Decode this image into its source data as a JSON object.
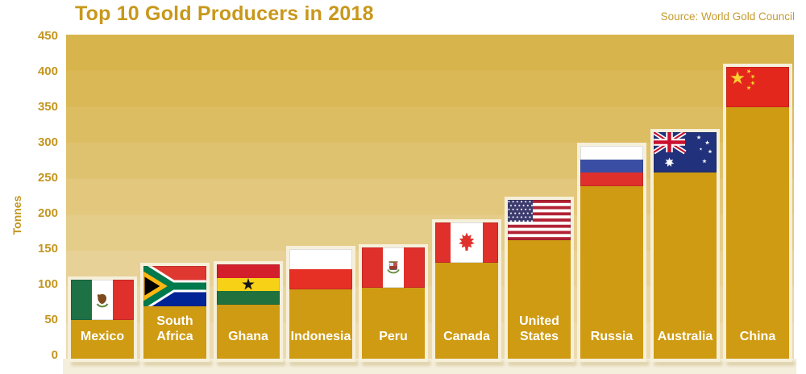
{
  "title": "Top 10 Gold Producers in 2018",
  "source": "Source: World Gold Council",
  "y_axis": {
    "label": "Tonnes",
    "ticks": [
      450,
      400,
      350,
      300,
      250,
      200,
      150,
      100,
      50,
      0
    ]
  },
  "colors": {
    "title_text": "#C8981B",
    "axis_text": "#C3961F",
    "bar_fill": "#CE9B13",
    "bar_halo": "#F6EFDA",
    "band_top": "#D8B44C",
    "band_bottom": "#ECDBB0",
    "footer_strip": "#F4EEDC",
    "bar_label_text": "#FFFFFF"
  },
  "chart_data": {
    "type": "bar",
    "title": "Top 10 Gold Producers in 2018",
    "source": "World Gold Council",
    "xlabel": "",
    "ylabel": "Tonnes",
    "ylim": [
      0,
      450
    ],
    "ytick_step": 50,
    "units": "tonnes",
    "legend": "none",
    "grid": "horizontal 50-tonne color bands",
    "categories": [
      "Mexico",
      "South Africa",
      "Ghana",
      "Indonesia",
      "Peru",
      "Canada",
      "United States",
      "Russia",
      "Australia",
      "China"
    ],
    "values": [
      110,
      129,
      131,
      152,
      155,
      189,
      220,
      295,
      315,
      405
    ],
    "bars": [
      {
        "label": "Mexico",
        "value": 110,
        "flag": "mexico",
        "icon": "mexico-flag-icon"
      },
      {
        "label": "South Africa",
        "value": 129,
        "flag": "south-africa",
        "icon": "south-africa-flag-icon"
      },
      {
        "label": "Ghana",
        "value": 131,
        "flag": "ghana",
        "icon": "ghana-flag-icon"
      },
      {
        "label": "Indonesia",
        "value": 152,
        "flag": "indonesia",
        "icon": "indonesia-flag-icon"
      },
      {
        "label": "Peru",
        "value": 155,
        "flag": "peru",
        "icon": "peru-flag-icon"
      },
      {
        "label": "Canada",
        "value": 189,
        "flag": "canada",
        "icon": "canada-flag-icon"
      },
      {
        "label": "United States",
        "value": 220,
        "flag": "united-states",
        "icon": "united-states-flag-icon"
      },
      {
        "label": "Russia",
        "value": 295,
        "flag": "russia",
        "icon": "russia-flag-icon"
      },
      {
        "label": "Australia",
        "value": 315,
        "flag": "australia",
        "icon": "australia-flag-icon"
      },
      {
        "label": "China",
        "value": 405,
        "flag": "china",
        "icon": "china-flag-icon"
      }
    ]
  }
}
